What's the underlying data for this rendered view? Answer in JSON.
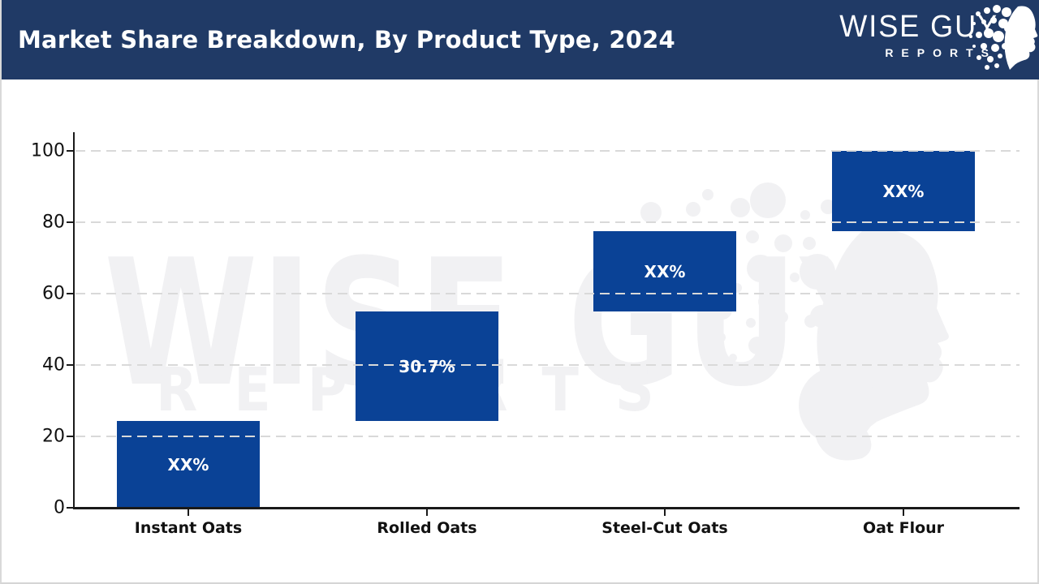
{
  "header": {
    "logo": {
      "line1": "WISE GUY",
      "line2": "REPORTS"
    }
  },
  "watermark": {
    "line1": "WISE GUY",
    "line2": "REPORTS"
  },
  "chart_data": {
    "type": "bar",
    "subtype": "floating-segment-breakdown (segments stack from 0 to 100%)",
    "title": "Market Share Breakdown, By Product Type, 2024",
    "categories": [
      "Instant Oats",
      "Rolled Oats",
      "Steel-Cut Oats",
      "Oat Flour"
    ],
    "bars": [
      {
        "category": "Instant Oats",
        "start": 0,
        "end": 24.3,
        "label": "XX%"
      },
      {
        "category": "Rolled Oats",
        "start": 24.3,
        "end": 55,
        "label": "30.7%"
      },
      {
        "category": "Steel-Cut Oats",
        "start": 55,
        "end": 77.5,
        "label": "XX%"
      },
      {
        "category": "Oat Flour",
        "start": 77.5,
        "end": 100,
        "label": "XX%"
      }
    ],
    "xlabel": "",
    "ylabel": "",
    "ylim": [
      0,
      105
    ],
    "yticks": [
      0,
      20,
      40,
      60,
      80,
      100
    ],
    "grid": "horizontal dashed, drawn over bars",
    "legend": "none"
  },
  "colors": {
    "header_navy": "#203a66",
    "bar_blue": "#0a4296",
    "gridline": "#d9d9d9",
    "axis": "#1a1a1a",
    "watermark": "#f1f1f3",
    "value_label": "#ffffff"
  }
}
